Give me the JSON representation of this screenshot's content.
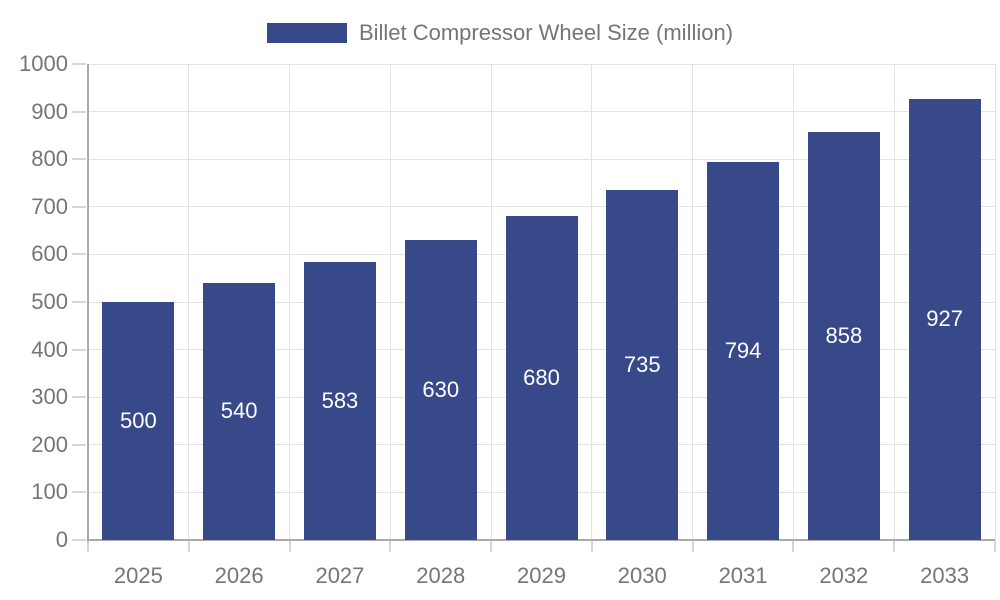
{
  "legend": {
    "label": "Billet Compressor Wheel Size (million)"
  },
  "colors": {
    "bar": "#38498A",
    "bar_label": "#FFFFFF",
    "axis_text": "#757575",
    "gridline": "#E3E3E3",
    "axis_line": "#A9A9A9",
    "tick": "#D6D6D6",
    "background": "#FFFFFF"
  },
  "chart_data": {
    "type": "bar",
    "categories": [
      "2025",
      "2026",
      "2027",
      "2028",
      "2029",
      "2030",
      "2031",
      "2032",
      "2033"
    ],
    "values": [
      500,
      540,
      583,
      630,
      680,
      735,
      794,
      858,
      927
    ],
    "title": "Billet Compressor Wheel Size (million)",
    "xlabel": "",
    "ylabel": "",
    "ylim": [
      0,
      1000
    ],
    "ytick_step": 100,
    "ytick_labels": [
      "0",
      "100",
      "200",
      "300",
      "400",
      "500",
      "600",
      "700",
      "800",
      "900",
      "1000"
    ],
    "grid": true,
    "legend_position": "top-center",
    "value_label_position": "inside-center"
  }
}
